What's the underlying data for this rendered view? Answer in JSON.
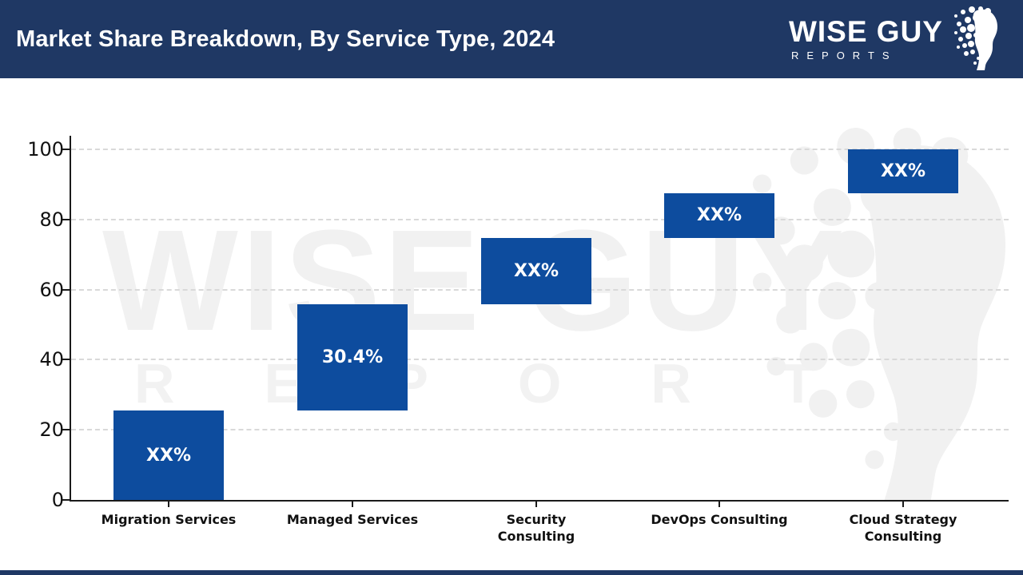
{
  "header": {
    "title": "Market Share Breakdown, By Service Type, 2024",
    "logo": {
      "line1": "WISE GUY",
      "line2": "REPORTS"
    }
  },
  "watermark": {
    "line1": "WISE GUY",
    "line2": "REPORTS"
  },
  "colors": {
    "header_bg": "#1f3864",
    "bar": "#0d4c9e",
    "grid": "#d9d9d9",
    "axis": "#1a1a1a",
    "bar_label": "#ffffff"
  },
  "chart_data": {
    "type": "bar",
    "subtype": "waterfall",
    "title": "Market Share Breakdown, By Service Type, 2024",
    "categories": [
      "Migration Services",
      "Managed Services",
      "Security\nConsulting",
      "DevOps Consulting",
      "Cloud Strategy\nConsulting"
    ],
    "segments": [
      {
        "category": "Migration Services",
        "start": 0,
        "end": 25.5,
        "label": "XX%"
      },
      {
        "category": "Managed Services",
        "start": 25.5,
        "end": 55.9,
        "label": "30.4%"
      },
      {
        "category": "Security Consulting",
        "start": 55.9,
        "end": 74.8,
        "label": "XX%"
      },
      {
        "category": "DevOps Consulting",
        "start": 74.8,
        "end": 87.5,
        "label": "XX%"
      },
      {
        "category": "Cloud Strategy Consulting",
        "start": 87.5,
        "end": 100,
        "label": "XX%"
      }
    ],
    "xlabel": "",
    "ylabel": "",
    "ylim": [
      0,
      100
    ],
    "yticks": [
      0,
      20,
      40,
      60,
      80,
      100
    ],
    "grid": "horizontal-dashed",
    "legend": "none",
    "bar_color": "#0d4c9e",
    "value_label_color": "#ffffff"
  }
}
